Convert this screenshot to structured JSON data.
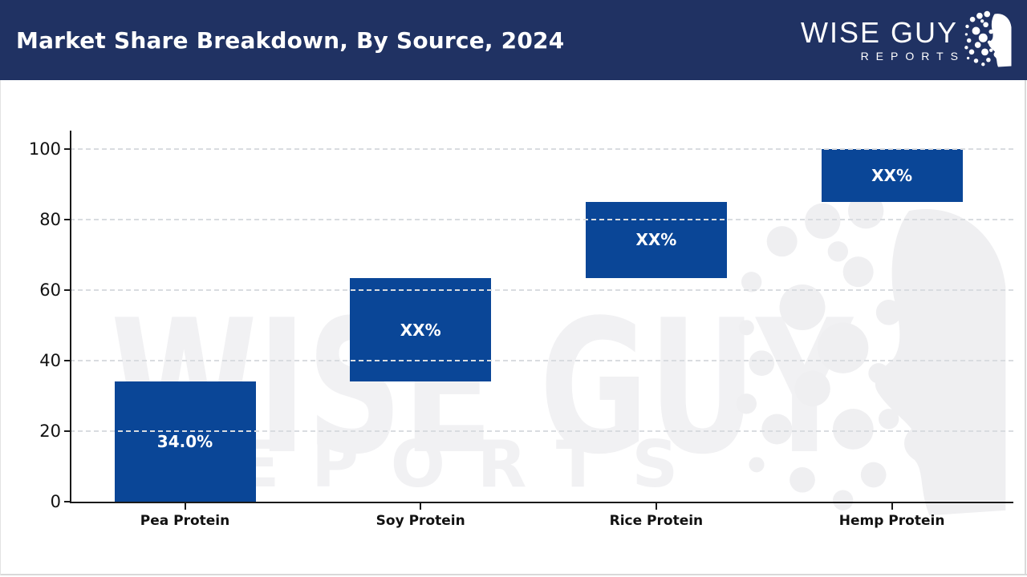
{
  "header": {
    "title": "Market Share Breakdown, By Source, 2024",
    "logo_primary": "WISE GUY",
    "logo_secondary": "REPORTS",
    "background_color": "#203263"
  },
  "watermark": {
    "line1": "WISE GUY",
    "line2": "REPORTS"
  },
  "chart_data": {
    "type": "bar",
    "variant": "waterfall",
    "title": "Market Share Breakdown, By Source, 2024",
    "categories": [
      "Pea Protein",
      "Soy Protein",
      "Rice Protein",
      "Hemp Protein"
    ],
    "segments": [
      {
        "category": "Pea Protein",
        "start": 0,
        "end": 34,
        "label": "34.0%"
      },
      {
        "category": "Soy Protein",
        "start": 34,
        "end": 63.5,
        "label": "XX%"
      },
      {
        "category": "Rice Protein",
        "start": 63.5,
        "end": 85,
        "label": "XX%"
      },
      {
        "category": "Hemp Protein",
        "start": 85,
        "end": 100,
        "label": "XX%"
      }
    ],
    "yticks": [
      0,
      20,
      40,
      60,
      80,
      100
    ],
    "ylim": [
      0,
      105
    ],
    "xlabel": "",
    "ylabel": "",
    "grid": "horizontal-dashed",
    "legend": false,
    "bar_color": "#0a4697",
    "bar_label_color": "#ffffff"
  }
}
